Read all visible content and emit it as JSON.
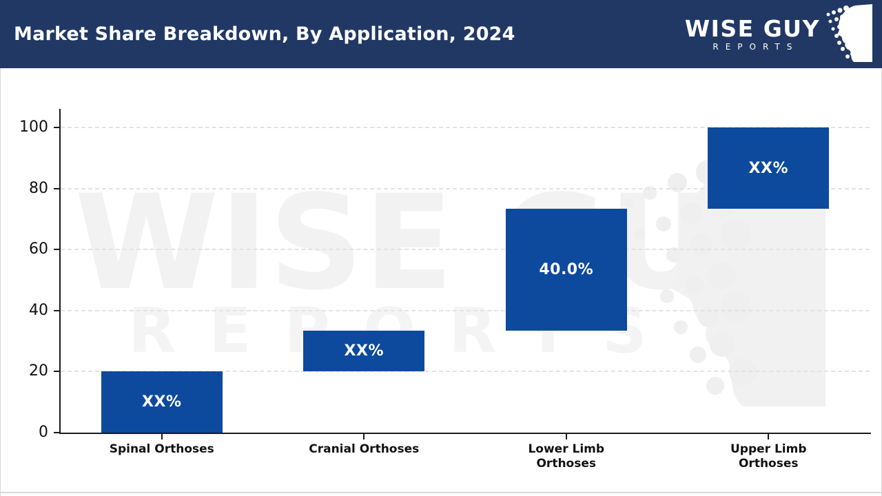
{
  "header": {
    "title": "Market Share Breakdown, By Application, 2024",
    "logo_line1": "WISE GUY",
    "logo_line2": "REPORTS"
  },
  "chart_data": {
    "type": "bar",
    "subtype": "floating-waterfall",
    "title": "Market Share Breakdown, By Application, 2024",
    "categories": [
      "Spinal Orthoses",
      "Cranial Orthoses",
      "Lower Limb Orthoses",
      "Upper Limb Orthoses"
    ],
    "categories_wrapped": [
      "Spinal Orthoses",
      "Cranial Orthoses",
      "Lower Limb\nOrthoses",
      "Upper Limb\nOrthoses"
    ],
    "segments": [
      {
        "category": "Spinal Orthoses",
        "start": 0,
        "end": 20,
        "label": "XX%"
      },
      {
        "category": "Cranial Orthoses",
        "start": 20,
        "end": 33.3,
        "label": "XX%"
      },
      {
        "category": "Lower Limb Orthoses",
        "start": 33.3,
        "end": 73.3,
        "label": "40.0%"
      },
      {
        "category": "Upper Limb Orthoses",
        "start": 73.3,
        "end": 100,
        "label": "XX%"
      }
    ],
    "ylim": [
      0,
      100
    ],
    "yticks": [
      0,
      20,
      40,
      60,
      80,
      100
    ],
    "xlabel": "",
    "ylabel": "",
    "grid": "horizontal-dashed",
    "legend": "none",
    "watermark_text": "WISE GUY",
    "watermark_reports": "REPORTS"
  },
  "colors": {
    "header_bg": "#213865",
    "bar": "#0d4a9e",
    "bar_label": "#ffffff",
    "grid": "#e3e3e3",
    "axis": "#1a1a1a",
    "watermark": "#f2f2f2"
  }
}
